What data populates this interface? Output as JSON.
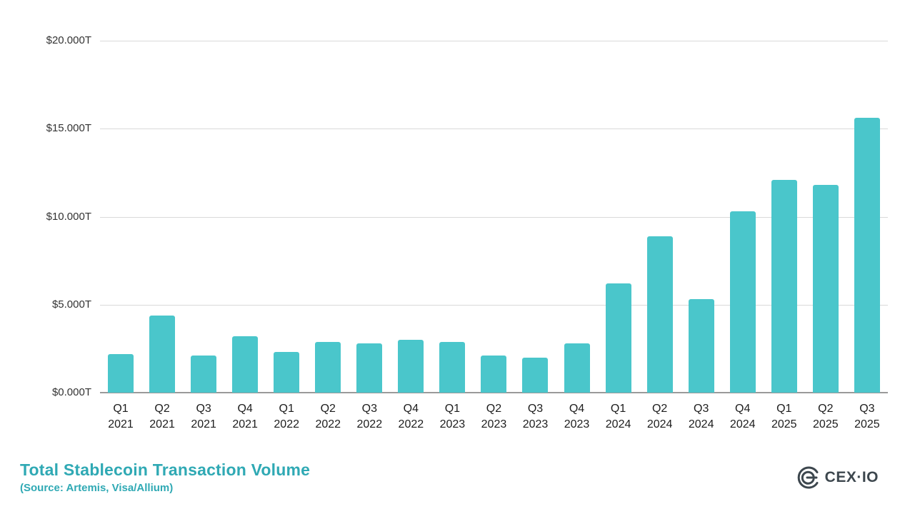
{
  "chart_data": {
    "type": "bar",
    "categories": [
      "Q1 2021",
      "Q2 2021",
      "Q3 2021",
      "Q4 2021",
      "Q1 2022",
      "Q2 2022",
      "Q3 2022",
      "Q4 2022",
      "Q1 2023",
      "Q2 2023",
      "Q3 2023",
      "Q4 2023",
      "Q1 2024",
      "Q2 2024",
      "Q3 2024",
      "Q4 2024",
      "Q1 2025",
      "Q2 2025",
      "Q3 2025"
    ],
    "values": [
      2.2,
      4.4,
      2.1,
      3.2,
      2.3,
      2.9,
      2.8,
      3.0,
      2.9,
      2.1,
      2.0,
      2.8,
      6.2,
      8.9,
      5.3,
      10.3,
      12.1,
      11.8,
      15.6
    ],
    "title": "Total Stablecoin Transaction Volume",
    "subtitle": "(Source: Artemis, Visa/Allium)",
    "xlabel": "",
    "ylabel": "",
    "ylim": [
      0,
      20
    ],
    "yticks": [
      0,
      5,
      10,
      15,
      20
    ],
    "ytick_labels": [
      "$0.000T",
      "$5.000T",
      "$10.000T",
      "$15.000T",
      "$20.000T"
    ],
    "bar_color": "#4ac6cb",
    "grid": true,
    "legend": "none"
  },
  "footer": {
    "title": "Total Stablecoin Transaction Volume",
    "source": "(Source: Artemis, Visa/Allium)",
    "logo_text": "CEX·IO"
  },
  "colors": {
    "bar": "#4ac6cb",
    "title": "#2fa9b4",
    "gridline": "#d9d9d9",
    "baseline": "#9a9a9a",
    "axis_text": "#1d1d1d",
    "logo": "#3d474e",
    "background": "#ffffff"
  }
}
